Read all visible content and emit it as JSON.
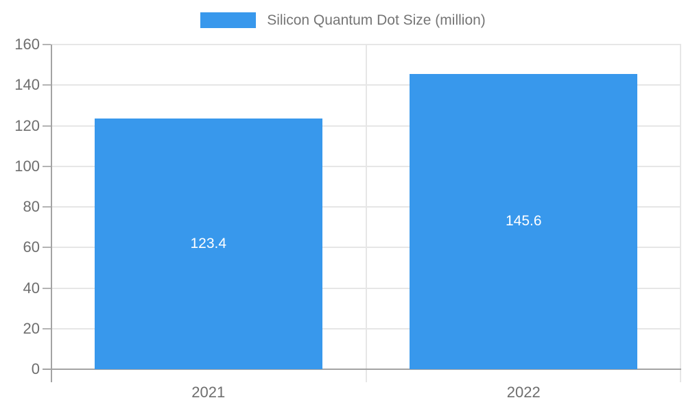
{
  "chart_data": {
    "type": "bar",
    "title": "",
    "legend_label": "Silicon Quantum Dot Size (million)",
    "legend_position": "top",
    "categories": [
      "2021",
      "2022"
    ],
    "values": [
      123.4,
      145.6
    ],
    "value_labels": [
      "123.4",
      "145.6"
    ],
    "xlabel": "",
    "ylabel": "",
    "ylim": [
      0,
      160
    ],
    "yticks": [
      0,
      20,
      40,
      60,
      80,
      100,
      120,
      140,
      160
    ],
    "grid": true,
    "colors": {
      "bar": "#3898EC",
      "value_label": "#FFFFFF",
      "gridline": "#E6E6E6",
      "axis": "#A3A3A3",
      "tick": "#B3B3B3",
      "tick_label": "#6E6E6E",
      "legend_text": "#757575",
      "background": "#FFFFFF"
    }
  }
}
